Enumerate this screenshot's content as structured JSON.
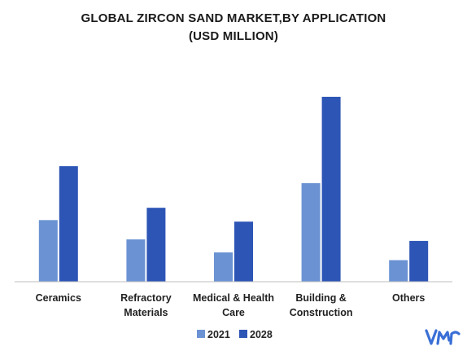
{
  "chart_data": {
    "type": "bar",
    "title_lines": [
      "GLOBAL ZIRCON SAND MARKET,BY APPLICATION",
      "(USD MILLION)"
    ],
    "categories": [
      [
        "Ceramics"
      ],
      [
        "Refractory",
        "Materials"
      ],
      [
        "Medical & Health",
        "Care"
      ],
      [
        "Building &",
        "Construction"
      ],
      [
        "Others"
      ]
    ],
    "series": [
      {
        "name": "2021",
        "color": "#6b93d3",
        "values": [
          80,
          55,
          38,
          128,
          28
        ]
      },
      {
        "name": "2028",
        "color": "#2d55b5",
        "values": [
          150,
          96,
          78,
          240,
          53
        ]
      }
    ],
    "ylim": [
      0,
      260
    ],
    "grid": false,
    "legend_position": "bottom-center"
  },
  "logo": {
    "icon": "vmr-logo-icon",
    "color": "#3a6fd6"
  }
}
